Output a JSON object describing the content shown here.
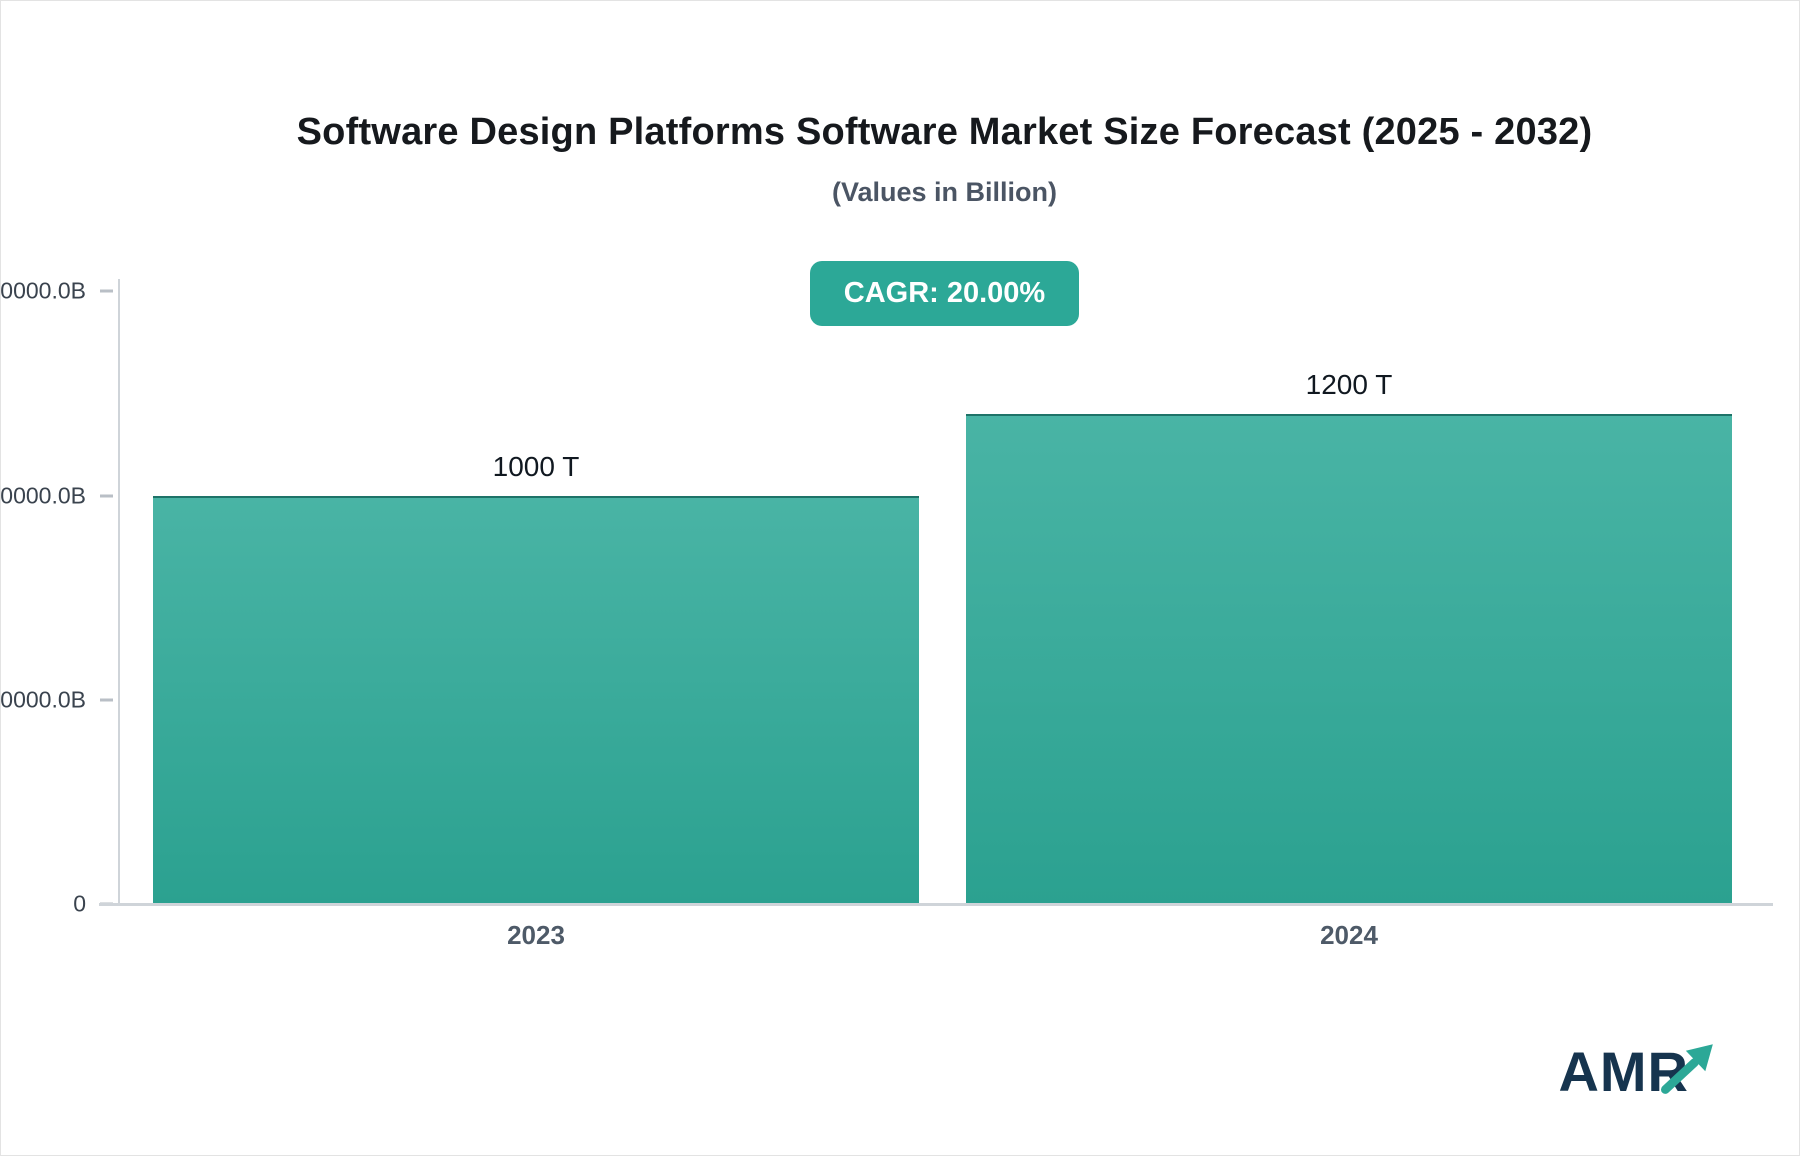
{
  "header": {
    "title": "Software Design Platforms Software Market Size Forecast (2025 - 2032)",
    "subtitle": "(Values in Billion)",
    "cagr_badge": "CAGR: 20.00%"
  },
  "chart_data": {
    "type": "bar",
    "title": "Software Design Platforms Software Market Size Forecast (2025 - 2032)",
    "subtitle": "(Values in Billion)",
    "cagr_text": "CAGR: 20.00%",
    "categories": [
      "2023",
      "2024"
    ],
    "values": [
      1000,
      1200
    ],
    "bar_labels": [
      "1000 T",
      "1200 T"
    ],
    "xlabel": "",
    "ylabel": "",
    "ylim": [
      0,
      1530
    ],
    "y_ticks": [
      {
        "value": 1500,
        "label": "0000.0B"
      },
      {
        "value": 1000,
        "label": "0000.0B"
      },
      {
        "value": 500,
        "label": "0000.0B"
      },
      {
        "value": 0,
        "label": "0"
      }
    ],
    "grid": false,
    "legend": "none",
    "bar_color_top": "#49B4A5",
    "bar_color_bottom": "#2BA190",
    "accent_color": "#2CA897"
  },
  "branding": {
    "logo_text": "AMR"
  }
}
